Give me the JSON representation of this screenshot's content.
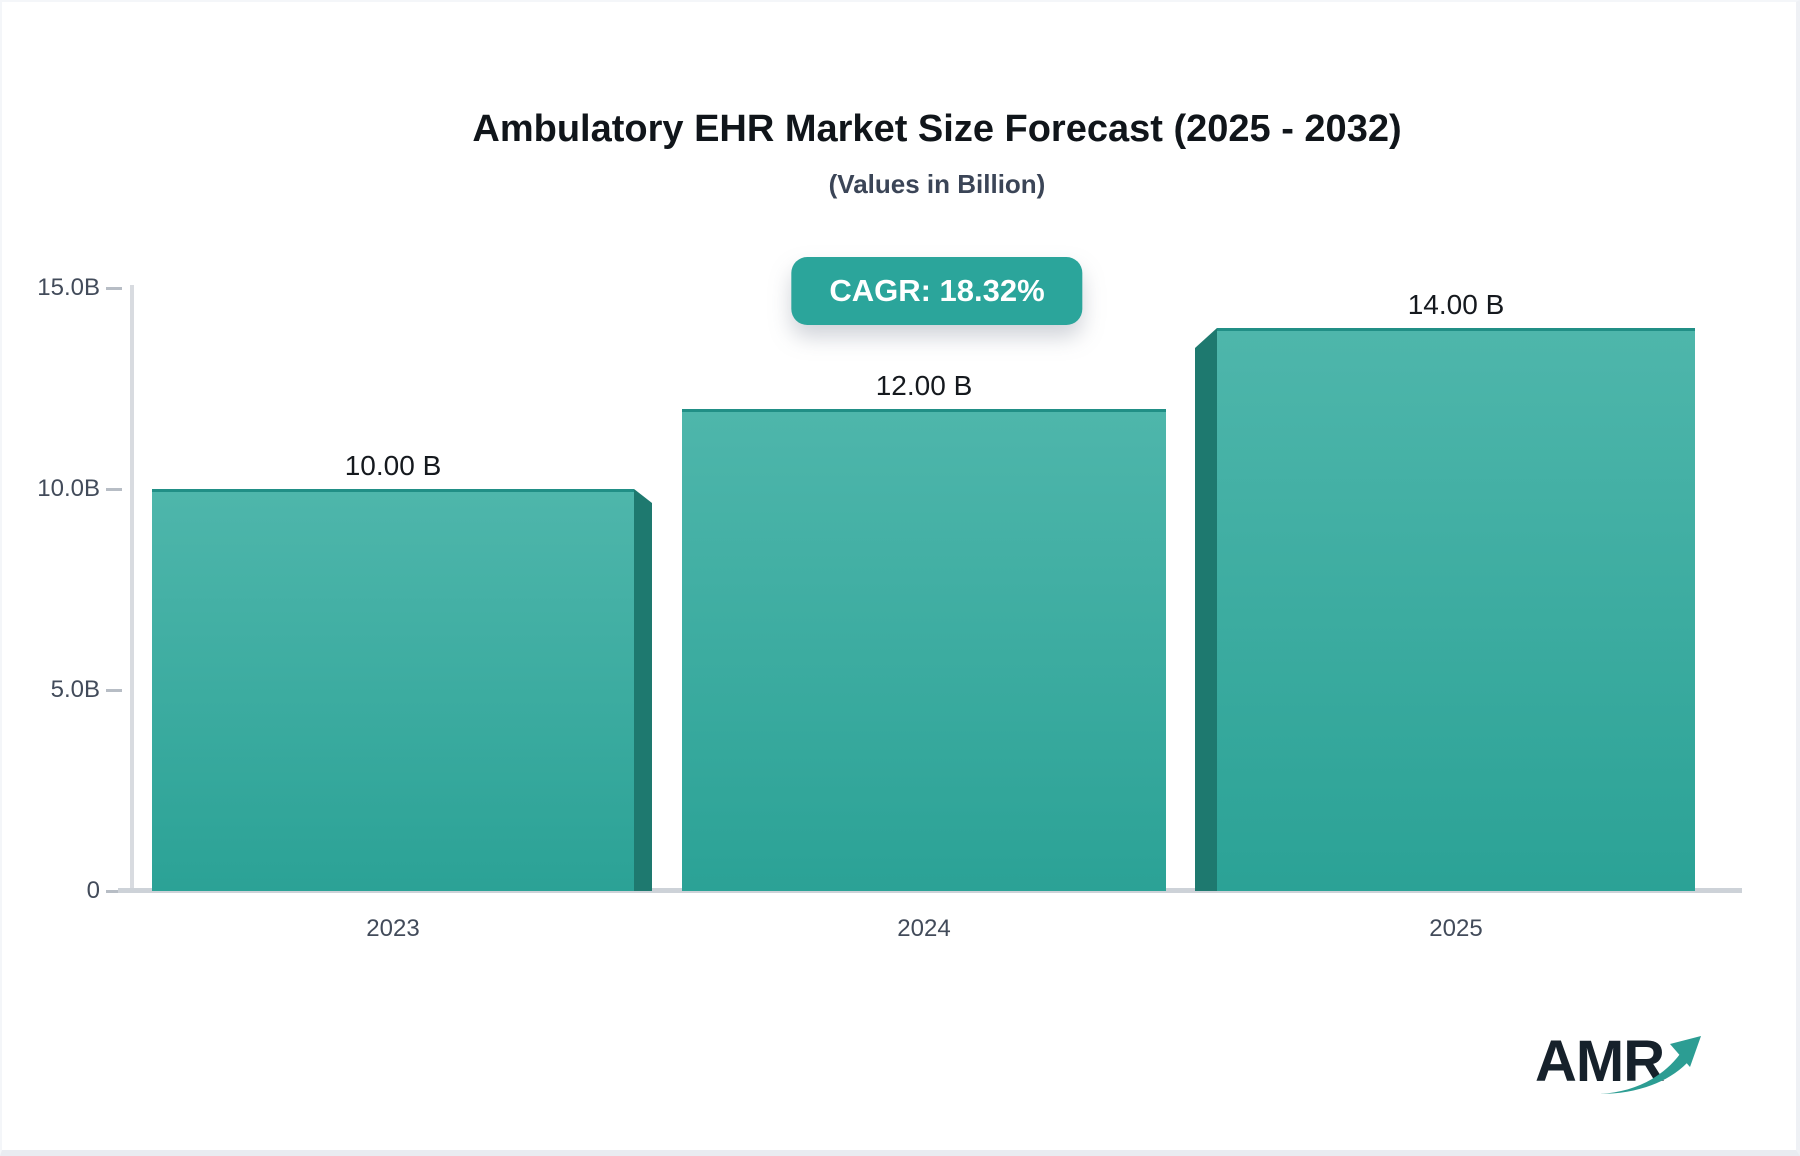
{
  "header": {
    "title": "Ambulatory EHR Market Size Forecast (2025 - 2032)",
    "subtitle": "(Values in Billion)"
  },
  "badge": {
    "label": "CAGR: 18.32%",
    "bg_color": "#2BA59B",
    "text_color": "#FFFFFF"
  },
  "logo": {
    "text": "AMR",
    "text_color": "#16212B",
    "arrow_color": "#2C9D93",
    "arrow_icon": "growth-arrow-icon"
  },
  "chart_data": {
    "type": "bar",
    "title": "Ambulatory EHR Market Size Forecast (2025 - 2032)",
    "subtitle": "(Values in Billion)",
    "cagr_annotation": "CAGR: 18.32%",
    "categories": [
      "2023",
      "2024",
      "2025"
    ],
    "values": [
      10,
      12,
      14
    ],
    "value_labels": [
      "10.00 B",
      "12.00 B",
      "14.00 B"
    ],
    "unit": "Billion",
    "ylim": [
      0,
      15
    ],
    "y_ticks": [
      {
        "label": "15.0B",
        "value": 15
      },
      {
        "label": "10.0B",
        "value": 10
      },
      {
        "label": "5.0B",
        "value": 5
      },
      {
        "label": "0",
        "value": 0
      }
    ],
    "grid": false,
    "legend": false,
    "bar_color_top": "#4EB6AB",
    "bar_color_bottom": "#2BA296",
    "bar_top_border_color": "#218F86",
    "bar_side_color": "#1E796F"
  }
}
